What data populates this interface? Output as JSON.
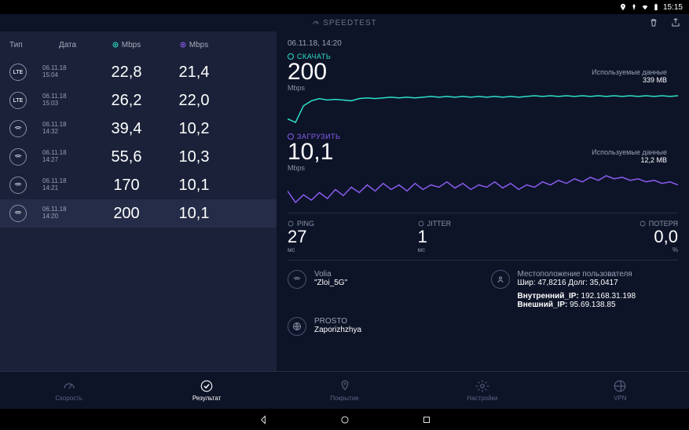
{
  "status": {
    "time": "15:15"
  },
  "app_title": "SPEEDTEST",
  "sidebar": {
    "headers": {
      "type": "Тип",
      "date": "Дата",
      "down": "Mbps",
      "up": "Mbps"
    },
    "rows": [
      {
        "conn": "LTE",
        "date": "06.11.18",
        "time": "15:04",
        "down": "22,8",
        "up": "21,4"
      },
      {
        "conn": "LTE",
        "date": "06.11.18",
        "time": "15:03",
        "down": "26,2",
        "up": "22,0"
      },
      {
        "conn": "wifi",
        "date": "06.11.18",
        "time": "14:32",
        "down": "39,4",
        "up": "10,2"
      },
      {
        "conn": "wifi",
        "date": "06.11.18",
        "time": "14:27",
        "down": "55,6",
        "up": "10,3"
      },
      {
        "conn": "wifi",
        "date": "06.11.18",
        "time": "14:21",
        "down": "170",
        "up": "10,1"
      },
      {
        "conn": "wifi",
        "date": "06.11.18",
        "time": "14:20",
        "down": "200",
        "up": "10,1",
        "selected": true
      }
    ]
  },
  "detail": {
    "datetime": "06.11.18, 14:20",
    "download": {
      "label": "СКАЧАТЬ",
      "value": "200",
      "unit": "Mbps",
      "usage_label": "Используемые данные",
      "usage_value": "339 MB",
      "color": "#2de0c8",
      "chart": [
        60,
        55,
        78,
        85,
        88,
        86,
        87,
        86,
        85,
        88,
        89,
        88,
        89,
        90,
        89,
        90,
        89,
        90,
        91,
        90,
        91,
        90,
        91,
        90,
        91,
        90,
        91,
        90,
        91,
        90,
        91,
        92,
        91,
        92,
        91,
        92,
        91,
        92,
        91,
        92,
        91,
        92,
        91,
        92,
        91,
        92,
        91,
        92,
        91,
        92
      ]
    },
    "upload": {
      "label": "ЗАГРУЗИТЬ",
      "value": "10,1",
      "unit": "Mbps",
      "usage_label": "Используемые данные",
      "usage_value": "12,2 MB",
      "color": "#8a5cf0",
      "chart": [
        50,
        35,
        45,
        38,
        48,
        40,
        52,
        44,
        55,
        48,
        58,
        50,
        60,
        52,
        58,
        50,
        60,
        52,
        58,
        55,
        62,
        54,
        60,
        52,
        58,
        55,
        62,
        54,
        60,
        52,
        58,
        55,
        62,
        58,
        64,
        60,
        66,
        62,
        68,
        64,
        70,
        66,
        68,
        64,
        66,
        62,
        64,
        60,
        62,
        58
      ]
    },
    "stats": {
      "ping": {
        "label": "PING",
        "value": "27",
        "unit": "мс"
      },
      "jitter": {
        "label": "JITTER",
        "value": "1",
        "unit": "мс"
      },
      "loss": {
        "label": "ПОТЕРЯ",
        "value": "0,0",
        "unit": "%"
      }
    },
    "info": {
      "provider": {
        "name": "Volia",
        "network": "\"Zloi_5G\""
      },
      "server": {
        "name": "PROSTO",
        "city": "Zaporizhzhya"
      },
      "location": {
        "title": "Местоположение пользователя",
        "coords": "Шир: 47,8216 Долг: 35,0417",
        "ip_int_label": "Внутренний_IP:",
        "ip_int": "192.168.31.198",
        "ip_ext_label": "Внешний_IP:",
        "ip_ext": "95.69.138.85"
      }
    }
  },
  "nav": {
    "items": [
      {
        "key": "speed",
        "label": "Скорость"
      },
      {
        "key": "result",
        "label": "Результат",
        "active": true
      },
      {
        "key": "coverage",
        "label": "Покрытие"
      },
      {
        "key": "settings",
        "label": "Настройки"
      },
      {
        "key": "vpn",
        "label": "VPN"
      }
    ]
  },
  "colors": {
    "bg": "#0e1428",
    "sidebar_bg": "#1a2138",
    "download": "#2de0c8",
    "upload": "#8a5cf0",
    "muted": "#8a90a8",
    "border": "#252c44"
  }
}
